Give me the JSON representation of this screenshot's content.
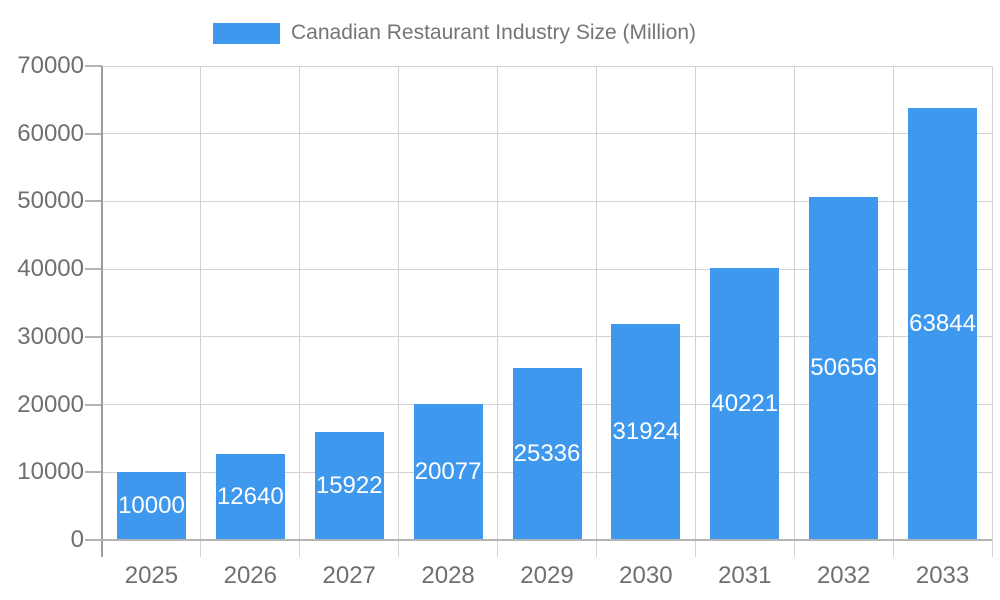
{
  "chart_data": {
    "type": "bar",
    "title": "Canadian Restaurant Industry Size (Million)",
    "categories": [
      "2025",
      "2026",
      "2027",
      "2028",
      "2029",
      "2030",
      "2031",
      "2032",
      "2033"
    ],
    "values": [
      10000,
      12640,
      15922,
      20077,
      25336,
      31924,
      40221,
      50656,
      63844
    ],
    "value_labels": [
      "10000",
      "12640",
      "15922",
      "20077",
      "25336",
      "31924",
      "40221",
      "50656",
      "63844"
    ],
    "xlabel": "",
    "ylabel": "",
    "ylim": [
      0,
      70000
    ],
    "yticks": [
      0,
      10000,
      20000,
      30000,
      40000,
      50000,
      60000,
      70000
    ],
    "ytick_labels": [
      "0",
      "10000",
      "20000",
      "30000",
      "40000",
      "50000",
      "60000",
      "70000"
    ],
    "grid": true,
    "legend_position": "top",
    "value_label_position": "center-of-bar",
    "colors": {
      "bar": "#3E99EE",
      "bar_label": "#FFFFFF",
      "axis_text": "#6F6F6F",
      "legend_text": "#757575",
      "grid_line": "#D2D2D2",
      "axis_line": "#B3B3B3",
      "y_axis_line": "#9E9E9E",
      "background": "#FFFFFF"
    }
  }
}
